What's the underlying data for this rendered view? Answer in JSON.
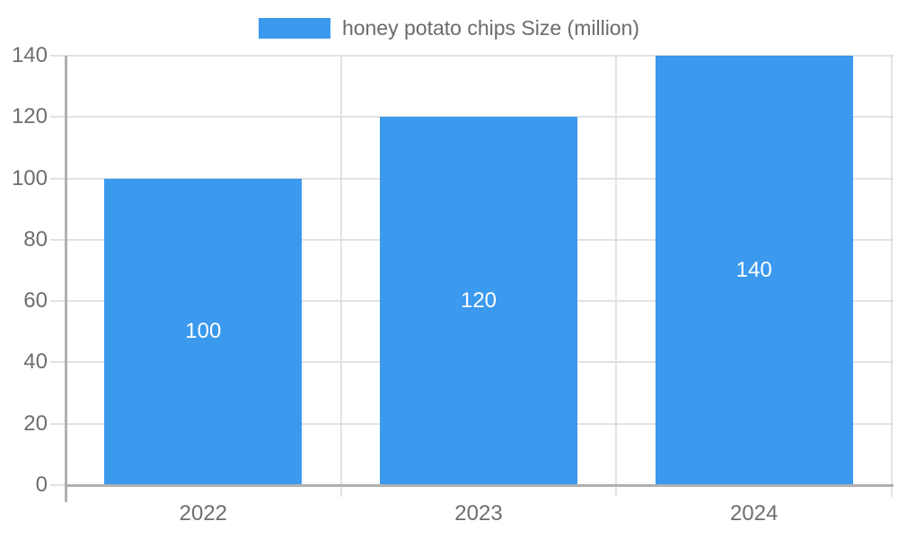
{
  "chart_data": {
    "type": "bar",
    "title": "honey potato chips Size (million)",
    "categories": [
      "2022",
      "2023",
      "2024"
    ],
    "series": [
      {
        "name": "honey potato chips Size (million)",
        "values": [
          100,
          120,
          140
        ]
      }
    ],
    "data_labels": [
      "100",
      "120",
      "140"
    ],
    "xlabel": "",
    "ylabel": "",
    "ylim": [
      0,
      140
    ],
    "ytick_step": 20,
    "ytick_labels": [
      "0",
      "20",
      "40",
      "60",
      "80",
      "100",
      "120",
      "140"
    ],
    "grid": true,
    "legend_position": "top-center",
    "colors": {
      "bar": "#3B99EE",
      "grid_line": "#E2E2E2",
      "axis_line": "#B0B0B0",
      "tick_text": "#6E6E6E",
      "data_label_text": "#FFFFFF",
      "background": "#FFFFFF"
    }
  }
}
